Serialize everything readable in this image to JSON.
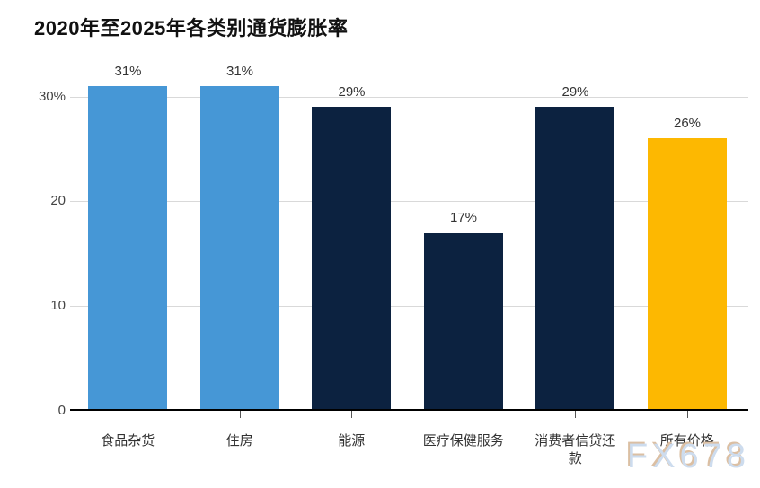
{
  "chart_data": {
    "type": "bar",
    "title": "2020年至2025年各类别通货膨胀率",
    "categories": [
      "食品杂货",
      "住房",
      "能源",
      "医疗保健服务",
      "消费者信贷还款",
      "所有价格"
    ],
    "values": [
      31,
      31,
      29,
      17,
      29,
      26
    ],
    "value_labels": [
      "31%",
      "31%",
      "29%",
      "17%",
      "29%",
      "26%"
    ],
    "bar_colors": [
      "#4697d6",
      "#4697d6",
      "#0c2240",
      "#0c2240",
      "#0c2240",
      "#fdb801"
    ],
    "xlabel": "",
    "ylabel": "",
    "ylim": [
      0,
      32
    ],
    "yticks": [
      {
        "value": 0,
        "label": "0"
      },
      {
        "value": 10,
        "label": "10"
      },
      {
        "value": 20,
        "label": "20"
      },
      {
        "value": 30,
        "label": "30%"
      }
    ],
    "grid": "horizontal",
    "gridline_color": "#d9d9d9",
    "axis_color": "#000000",
    "legend": "none"
  },
  "watermark": {
    "text": "FX678"
  }
}
